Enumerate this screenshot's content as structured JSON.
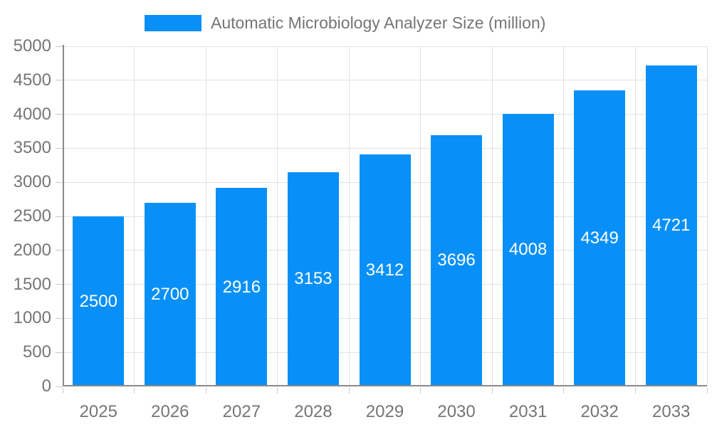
{
  "chart_data": {
    "type": "bar",
    "title": "Automatic Microbiology Analyzer Size (million)",
    "categories": [
      "2025",
      "2026",
      "2027",
      "2028",
      "2029",
      "2030",
      "2031",
      "2032",
      "2033"
    ],
    "values": [
      2500,
      2700,
      2916,
      3153,
      3412,
      3696,
      4008,
      4349,
      4721
    ],
    "xlabel": "",
    "ylabel": "",
    "ylim": [
      0,
      5000
    ],
    "yticks": [
      0,
      500,
      1000,
      1500,
      2000,
      2500,
      3000,
      3500,
      4000,
      4500,
      5000
    ],
    "grid": true,
    "legend_position": "top-center",
    "bar_value_labels": true,
    "colors": {
      "bar": "#0890F8",
      "grid": "#E2E2E2",
      "axis": "#8A8A8A",
      "tick": "#C9C9C9",
      "label_text": "#757575",
      "value_label_text": "#FFFFFF",
      "background": "#FFFFFF"
    }
  }
}
